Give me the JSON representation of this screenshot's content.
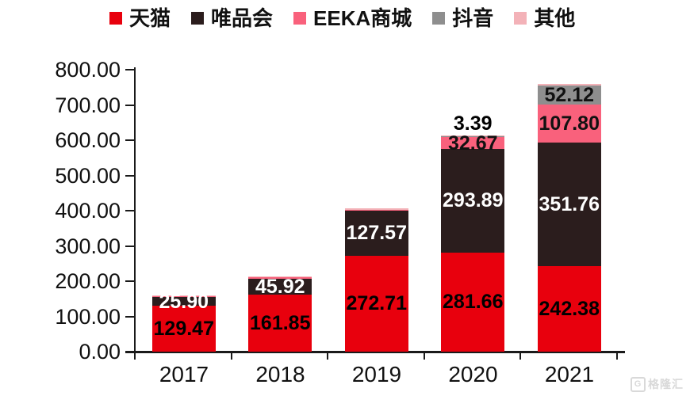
{
  "chart_data": {
    "type": "bar",
    "stacked": true,
    "title": "",
    "categories": [
      "2017",
      "2018",
      "2019",
      "2020",
      "2021"
    ],
    "series": [
      {
        "name": "天猫",
        "color": "#E8000D",
        "label_color": "#000000",
        "values": [
          129.47,
          161.85,
          272.71,
          281.66,
          242.38
        ],
        "labels": [
          "129.47",
          "161.85",
          "272.71",
          "281.66",
          "242.38"
        ]
      },
      {
        "name": "唯品会",
        "color": "#2B1D1D",
        "label_color": "#FFFFFF",
        "values": [
          25.9,
          45.92,
          127.57,
          293.89,
          351.76
        ],
        "labels": [
          "25.90",
          "45.92",
          "127.57",
          "293.89",
          "351.76"
        ]
      },
      {
        "name": "EEKA商城",
        "color": "#F9617C",
        "label_color": "#111111",
        "values": [
          1.5,
          2.5,
          2.5,
          32.67,
          107.8
        ],
        "labels": [
          null,
          null,
          null,
          "32.67",
          "107.80"
        ]
      },
      {
        "name": "抖音",
        "color": "#8E8E8E",
        "label_color": "#111111",
        "values": [
          0,
          0,
          0,
          3.39,
          52.12
        ],
        "labels": [
          null,
          null,
          null,
          "3.39",
          "52.12"
        ]
      },
      {
        "name": "其他",
        "color": "#F3B2B8",
        "label_color": null,
        "values": [
          2.5,
          3.0,
          4.0,
          2.0,
          5.0
        ],
        "labels": [
          null,
          null,
          null,
          null,
          null
        ]
      }
    ],
    "ylim": [
      0,
      800
    ],
    "ytick_labels": [
      "0.00",
      "100.00",
      "200.00",
      "300.00",
      "400.00",
      "500.00",
      "600.00",
      "700.00",
      "800.00"
    ],
    "legend_position": "top",
    "grid": false
  },
  "watermark": {
    "logo": "G",
    "text": "格隆汇"
  }
}
